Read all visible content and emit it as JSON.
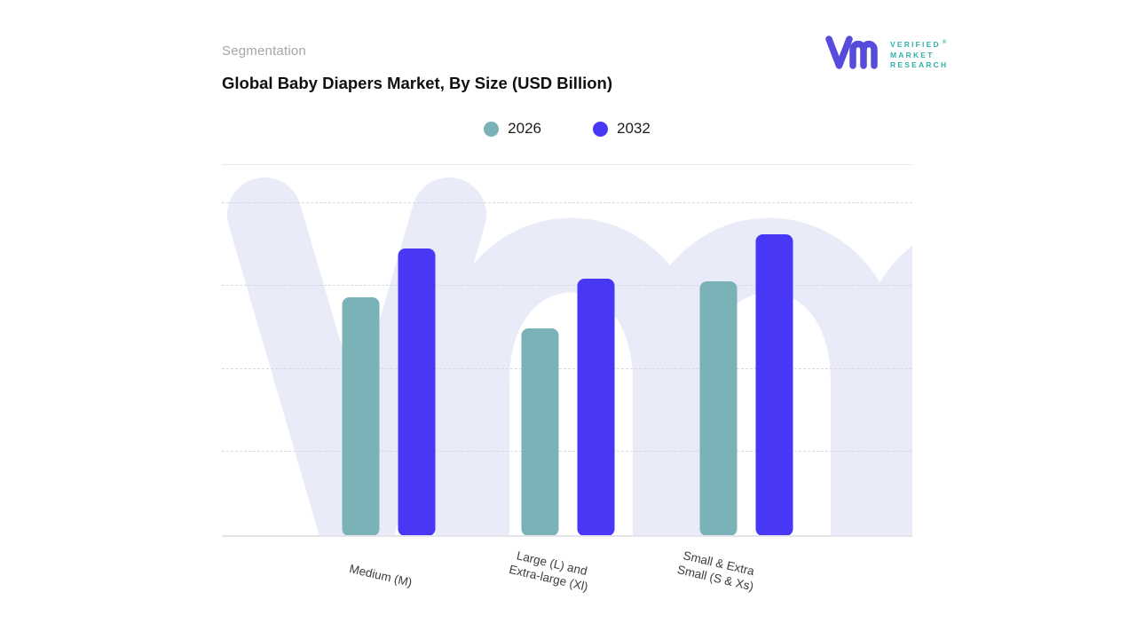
{
  "page": {
    "background": "#ffffff"
  },
  "header": {
    "eyebrow": "Segmentation",
    "title": "Global Baby Diapers Market, By Size (USD Billion)"
  },
  "logo": {
    "name": "Verified Market Research",
    "glyph": "vmr-monogram",
    "glyph_color": "#574bdb",
    "text_color": "#2fb3a9",
    "lines": [
      "VERIFIED",
      "MARKET",
      "RESEARCH"
    ],
    "registered_mark": "®"
  },
  "legend": {
    "items": [
      {
        "label": "2026",
        "color": "#7ab2b8"
      },
      {
        "label": "2032",
        "color": "#4838f6"
      }
    ]
  },
  "x_axis": {
    "labels": [
      {
        "lines": [
          "Medium (M)"
        ]
      },
      {
        "lines": [
          "Large (L) and",
          "Extra-large (Xl)"
        ]
      },
      {
        "lines": [
          "Small & Extra",
          "Small (S & Xs)"
        ]
      }
    ]
  },
  "chart_data": {
    "type": "bar",
    "title": "Global Baby Diapers Market, By Size (USD Billion)",
    "categories": [
      "Medium (M)",
      "Large (L) and Extra-large (Xl)",
      "Small & Extra Small (S & Xs)"
    ],
    "series": [
      {
        "name": "2026",
        "color": "#7ab2b8",
        "values": [
          2.9,
          2.52,
          3.09
        ]
      },
      {
        "name": "2032",
        "color": "#4838f6",
        "values": [
          3.49,
          3.12,
          3.66
        ]
      }
    ],
    "xlabel": "",
    "ylabel": "",
    "ylim": [
      0,
      4.5
    ],
    "y_axis_tick_labels_visible": false,
    "grid": "horizontal-dashed",
    "gridline_count": 4,
    "legend_position": "top-center",
    "note": "Y axis is unlabeled in source image; values are estimated in gridline units (1 unit per gridline step)."
  }
}
